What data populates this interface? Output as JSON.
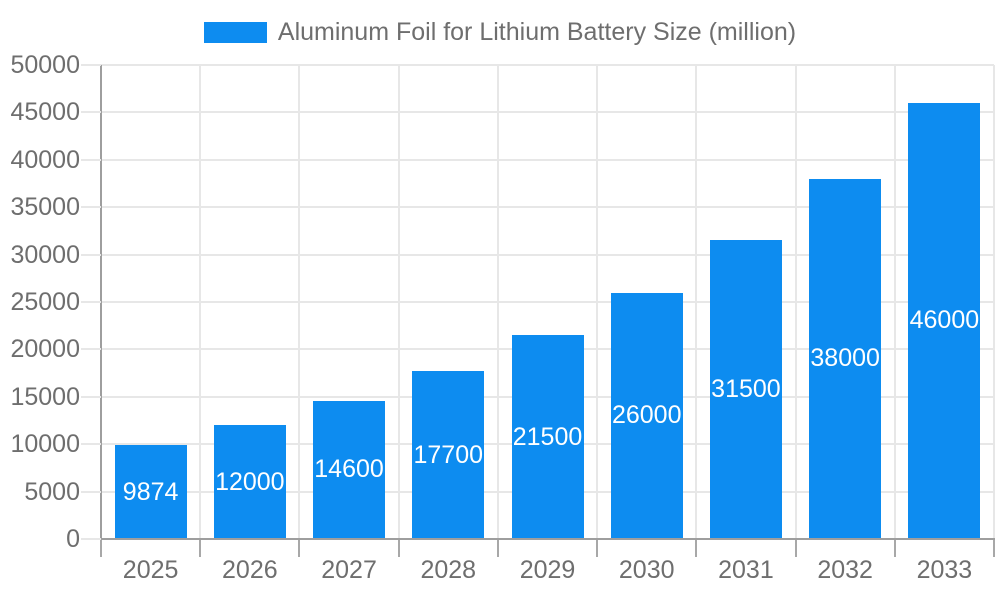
{
  "legend": {
    "swatch_color": "#0d8cf0"
  },
  "chart_data": {
    "type": "bar",
    "title": "",
    "categories": [
      "2025",
      "2026",
      "2027",
      "2028",
      "2029",
      "2030",
      "2031",
      "2032",
      "2033"
    ],
    "series": [
      {
        "name": "Aluminum Foil for Lithium Battery Size (million)",
        "values": [
          9874,
          12000,
          14600,
          17700,
          21500,
          26000,
          31500,
          38000,
          46000
        ]
      }
    ],
    "value_labels": [
      "9874",
      "12000",
      "14600",
      "17700",
      "21500",
      "26000",
      "31500",
      "38000",
      "46000"
    ],
    "xlabel": "",
    "ylabel": "",
    "ylim": [
      0,
      50000
    ],
    "yticks": [
      0,
      5000,
      10000,
      15000,
      20000,
      25000,
      30000,
      35000,
      40000,
      45000,
      50000
    ],
    "grid": true,
    "legend_position": "top",
    "bar_color": "#0d8cf0",
    "value_label_color": "#ffffff",
    "axis_color": "#9e9e9e",
    "gridline_color": "#e7e7e7",
    "label_color": "#6e6e6e",
    "background_color": "#ffffff"
  }
}
